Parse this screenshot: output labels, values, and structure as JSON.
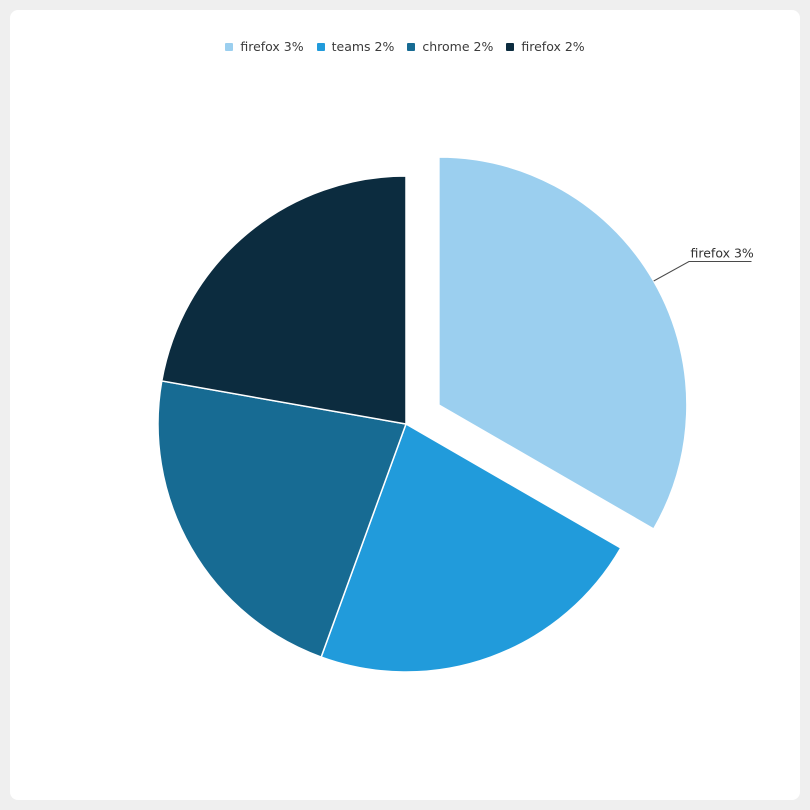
{
  "page": {
    "background_color": "#EFEFEF",
    "card_color": "#FFFFFF"
  },
  "legend": {
    "position": "top-center"
  },
  "chart_data": {
    "type": "pie",
    "items": [
      {
        "label": "firefox 3%",
        "name": "firefox",
        "shown_percent": "3%",
        "value": 3,
        "color": "#9BCFEF",
        "exploded": true
      },
      {
        "label": "teams 2%",
        "name": "teams",
        "shown_percent": "2%",
        "value": 2,
        "color": "#219BDB",
        "exploded": false
      },
      {
        "label": "chrome 2%",
        "name": "chrome",
        "shown_percent": "2%",
        "value": 2,
        "color": "#176B93",
        "exploded": false
      },
      {
        "label": "firefox 2%",
        "name": "firefox",
        "shown_percent": "2%",
        "value": 2,
        "color": "#0C2C3F",
        "exploded": false
      }
    ],
    "annotation": {
      "text": "firefox 3%",
      "slice_index": 0
    },
    "slice_fractions_of_circle": [
      0.333,
      0.222,
      0.222,
      0.222
    ],
    "start_angle_deg": 90,
    "direction": "clockwise",
    "legend_position": "top",
    "slice_border_color": "#FFFFFF"
  }
}
